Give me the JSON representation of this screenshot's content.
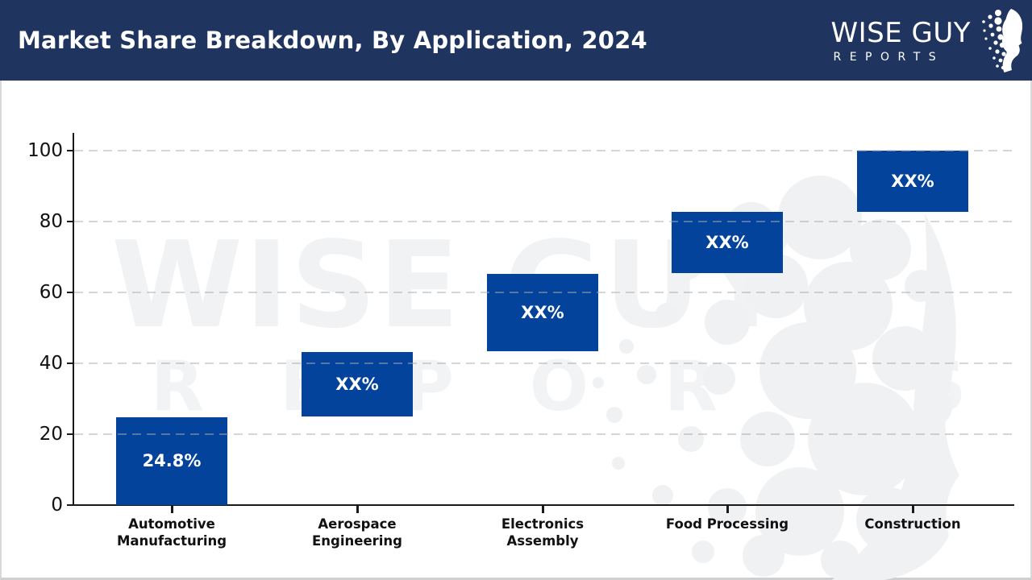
{
  "header": {
    "title": "Market Share Breakdown, By Application, 2024",
    "bg_color": "#1f3560"
  },
  "logo": {
    "line1": "WISE GUY",
    "line2": "REPORTS",
    "head_icon": "dotted-head-profile"
  },
  "watermark": {
    "line1": "WISE GUY",
    "line2": "R E P O R T S",
    "head_icon": "dotted-head-profile",
    "color": "#f1f2f4"
  },
  "chart_data": {
    "type": "bar",
    "subtype": "waterfall",
    "title": "",
    "xlabel": "",
    "ylabel": "",
    "categories": [
      "Automotive Manufacturing",
      "Aerospace Engineering",
      "Electronics Assembly",
      "Food Processing",
      "Construction"
    ],
    "segments": [
      {
        "start": 0,
        "end": 24.8,
        "label": "24.8%"
      },
      {
        "start": 24.9,
        "end": 43.1,
        "label": "XX%"
      },
      {
        "start": 43.3,
        "end": 65.2,
        "label": "XX%"
      },
      {
        "start": 65.5,
        "end": 82.7,
        "label": "XX%"
      },
      {
        "start": 82.8,
        "end": 100,
        "label": "XX%"
      }
    ],
    "ylim": [
      0,
      100
    ],
    "yticks": [
      0,
      20,
      40,
      60,
      80,
      100
    ],
    "bar_color": "#04439c",
    "grid": "dashed-horizontal",
    "legend": "none"
  }
}
